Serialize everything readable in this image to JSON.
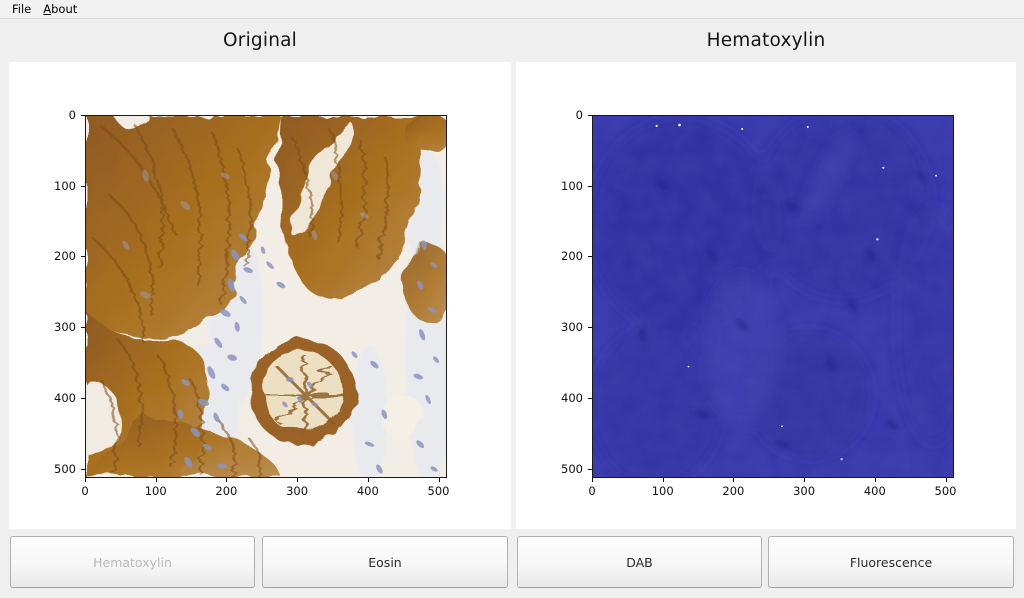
{
  "menu": {
    "items": [
      {
        "accel": "",
        "rest": "File"
      },
      {
        "accel": "A",
        "rest": "bout"
      }
    ]
  },
  "figures": [
    {
      "title": "Original",
      "x_ticks": [
        "0",
        "100",
        "200",
        "300",
        "400",
        "500"
      ],
      "y_ticks": [
        "0",
        "100",
        "200",
        "300",
        "400",
        "500"
      ]
    },
    {
      "title": "Hematoxylin",
      "x_ticks": [
        "0",
        "100",
        "200",
        "300",
        "400",
        "500"
      ],
      "y_ticks": [
        "0",
        "100",
        "200",
        "300",
        "400",
        "500"
      ]
    }
  ],
  "buttons": [
    {
      "label": "Hematoxylin",
      "enabled": false
    },
    {
      "label": "Eosin",
      "enabled": true
    },
    {
      "label": "DAB",
      "enabled": true
    },
    {
      "label": "Fluorescence",
      "enabled": true
    }
  ],
  "colors": {
    "dab_brown": "#9a6227",
    "hematoxylin_blue": "#3636a9",
    "tissue_background": "#f2eee6",
    "window_background": "#efefef",
    "disabled_text": "#b8b8b8"
  }
}
